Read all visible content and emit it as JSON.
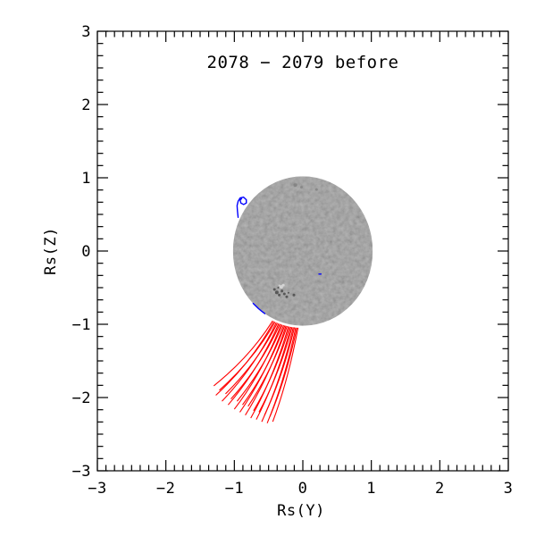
{
  "chart_data": {
    "type": "line",
    "subtype": "solar-field-line-plot",
    "title": "2078 − 2079 before",
    "xlabel": "Rs(Y)",
    "ylabel": "Rs(Z)",
    "xlim": [
      -3,
      3
    ],
    "ylim": [
      -3,
      3
    ],
    "xticks": [
      -3,
      -2,
      -1,
      0,
      1,
      2,
      3
    ],
    "yticks": [
      -3,
      -2,
      -1,
      0,
      1,
      2,
      3
    ],
    "xtick_labels": [
      "−3",
      "−2",
      "−1",
      "0",
      "1",
      "2",
      "3"
    ],
    "ytick_labels": [
      "−3",
      "−2",
      "−1",
      "0",
      "1",
      "2",
      "3"
    ],
    "x_minor_divisions": 8,
    "y_minor_divisions": 6,
    "grid": "off",
    "legend": "none",
    "solar_disk": {
      "center": [
        0,
        0
      ],
      "radius": 1.02,
      "fill": "#9b9b9b",
      "description": "gray solar magnetogram disk of radius 1 Rs"
    },
    "field_lines": {
      "color": "#ff0000",
      "count": 22,
      "description": "open field-line fan from south-west limb",
      "lines": [
        {
          "start": [
            -0.44,
            -0.953
          ],
          "end": [
            -1.3,
            -1.84
          ]
        },
        {
          "start": [
            -0.422,
            -0.961
          ],
          "end": [
            -1.27,
            -1.97
          ]
        },
        {
          "start": [
            -0.405,
            -0.968
          ],
          "end": [
            -1.22,
            -1.9
          ]
        },
        {
          "start": [
            -0.387,
            -0.976
          ],
          "end": [
            -1.18,
            -2.05
          ]
        },
        {
          "start": [
            -0.37,
            -0.983
          ],
          "end": [
            -1.13,
            -1.95
          ]
        },
        {
          "start": [
            -0.352,
            -0.989
          ],
          "end": [
            -1.09,
            -2.1
          ]
        },
        {
          "start": [
            -0.334,
            -0.995
          ],
          "end": [
            -1.05,
            -2.02
          ]
        },
        {
          "start": [
            -0.317,
            -1.001
          ],
          "end": [
            -1.0,
            -2.16
          ]
        },
        {
          "start": [
            -0.299,
            -1.007
          ],
          "end": [
            -0.96,
            -2.05
          ]
        },
        {
          "start": [
            -0.281,
            -1.012
          ],
          "end": [
            -0.92,
            -2.2
          ]
        },
        {
          "start": [
            -0.264,
            -1.017
          ],
          "end": [
            -0.88,
            -2.1
          ]
        },
        {
          "start": [
            -0.246,
            -1.021
          ],
          "end": [
            -0.84,
            -2.24
          ]
        },
        {
          "start": [
            -0.229,
            -1.025
          ],
          "end": [
            -0.8,
            -2.12
          ]
        },
        {
          "start": [
            -0.211,
            -1.029
          ],
          "end": [
            -0.76,
            -2.28
          ]
        },
        {
          "start": [
            -0.193,
            -1.033
          ],
          "end": [
            -0.72,
            -2.18
          ]
        },
        {
          "start": [
            -0.176,
            -1.036
          ],
          "end": [
            -0.68,
            -2.3
          ]
        },
        {
          "start": [
            -0.158,
            -1.039
          ],
          "end": [
            -0.64,
            -2.2
          ]
        },
        {
          "start": [
            -0.14,
            -1.041
          ],
          "end": [
            -0.6,
            -2.33
          ]
        },
        {
          "start": [
            -0.123,
            -1.043
          ],
          "end": [
            -0.56,
            -2.24
          ]
        },
        {
          "start": [
            -0.105,
            -1.045
          ],
          "end": [
            -0.52,
            -2.35
          ]
        },
        {
          "start": [
            -0.088,
            -1.047
          ],
          "end": [
            -0.48,
            -2.26
          ]
        },
        {
          "start": [
            -0.07,
            -1.048
          ],
          "end": [
            -0.44,
            -2.33
          ]
        }
      ],
      "curve": {
        "cx_frac": 0.38,
        "cy_frac": 0.55
      }
    },
    "contours": {
      "color": "#0000ff",
      "features": [
        {
          "name": "closed-loop-north-west-limb",
          "points": [
            [
              -0.945,
              0.46
            ],
            [
              -0.955,
              0.55
            ],
            [
              -0.96,
              0.62
            ],
            [
              -0.945,
              0.68
            ],
            [
              -0.915,
              0.725
            ],
            [
              -0.865,
              0.735
            ],
            [
              -0.825,
              0.7
            ],
            [
              -0.825,
              0.655
            ],
            [
              -0.865,
              0.635
            ],
            [
              -0.905,
              0.655
            ],
            [
              -0.915,
              0.695
            ],
            [
              -0.895,
              0.715
            ]
          ]
        },
        {
          "name": "south-west-limb-arc",
          "points": [
            [
              -0.725,
              -0.715
            ],
            [
              -0.685,
              -0.752
            ],
            [
              -0.645,
              -0.788
            ],
            [
              -0.6,
              -0.822
            ],
            [
              -0.555,
              -0.855
            ]
          ]
        },
        {
          "name": "small-dot-on-disk",
          "points": [
            [
              0.235,
              -0.315
            ],
            [
              0.265,
              -0.315
            ]
          ]
        }
      ]
    },
    "active_region_dots": {
      "dark_color": "#4a4a4a",
      "light_color": "#d9d9d9",
      "dark": [
        [
          -0.415,
          -0.525,
          1.5
        ],
        [
          -0.38,
          -0.565,
          2.0
        ],
        [
          -0.345,
          -0.6,
          1.5
        ],
        [
          -0.305,
          -0.545,
          1.5
        ],
        [
          -0.27,
          -0.585,
          1.5
        ],
        [
          -0.235,
          -0.625,
          1.5
        ],
        [
          -0.36,
          -0.5,
          1.0
        ],
        [
          -0.21,
          -0.57,
          1.0
        ],
        [
          -0.13,
          -0.6,
          1.5
        ]
      ],
      "light": [
        [
          -0.315,
          -0.49,
          2.0
        ],
        [
          -0.285,
          -0.465,
          1.5
        ],
        [
          -0.345,
          -0.47,
          1.0
        ]
      ],
      "faint_dark": [
        [
          -0.11,
          0.9,
          2.0
        ],
        [
          0.2,
          0.84,
          1.5
        ],
        [
          -0.02,
          0.87,
          1.5
        ]
      ]
    }
  },
  "colors": {
    "background": "#ffffff",
    "axis": "#000000",
    "text": "#000000",
    "field_lines": "#ff0000",
    "contours": "#0000ff",
    "disk_gray": "#9b9b9b"
  }
}
